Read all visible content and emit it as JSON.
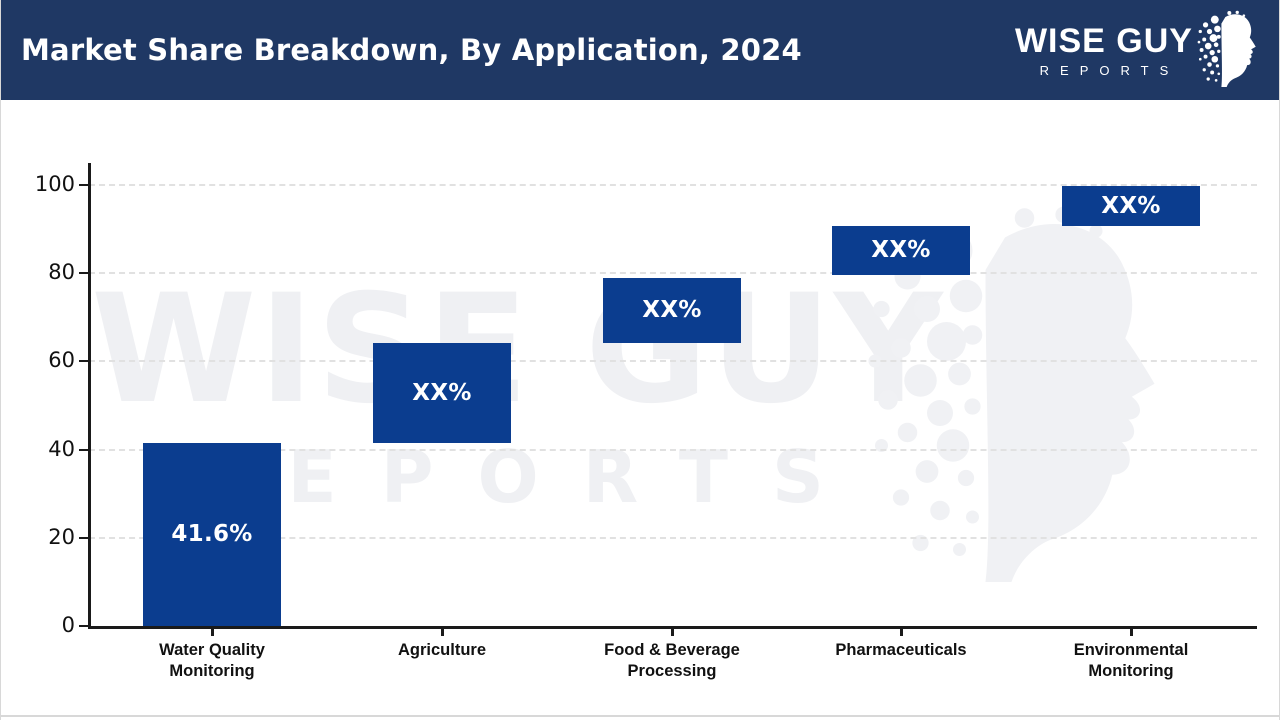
{
  "header": {
    "title": "Market Share Breakdown, By Application, 2024",
    "background_color": "#1f3864",
    "text_color": "#ffffff",
    "logo": {
      "line1": "WISE GUY",
      "line2": "REPORTS"
    }
  },
  "watermark": {
    "line1": "WISE GUY",
    "line2": "REPORTS"
  },
  "chart_data": {
    "type": "bar",
    "subtype": "waterfall",
    "title": "Market Share Breakdown, By Application, 2024",
    "categories": [
      "Water Quality\nMonitoring",
      "Agriculture",
      "Food & Beverage\nProcessing",
      "Pharmaceuticals",
      "Environmental\nMonitoring"
    ],
    "segments": [
      {
        "category": "Water Quality Monitoring",
        "start": 0,
        "end": 41.6,
        "label": "41.6%"
      },
      {
        "category": "Agriculture",
        "start": 41.6,
        "end": 64.2,
        "label": "XX%"
      },
      {
        "category": "Food & Beverage Processing",
        "start": 64.2,
        "end": 78.9,
        "label": "XX%"
      },
      {
        "category": "Pharmaceuticals",
        "start": 79.7,
        "end": 90.6,
        "label": "XX%"
      },
      {
        "category": "Environmental Monitoring",
        "start": 90.6,
        "end": 99.7,
        "label": "XX%"
      }
    ],
    "y_ticks": [
      0,
      20,
      40,
      60,
      80,
      100
    ],
    "ylim": [
      0,
      105
    ],
    "xlabel": "",
    "ylabel": "",
    "grid": "horizontal-dashed",
    "legend": "none",
    "bar_color": "#0b3d8f",
    "bar_label_color": "#ffffff"
  }
}
